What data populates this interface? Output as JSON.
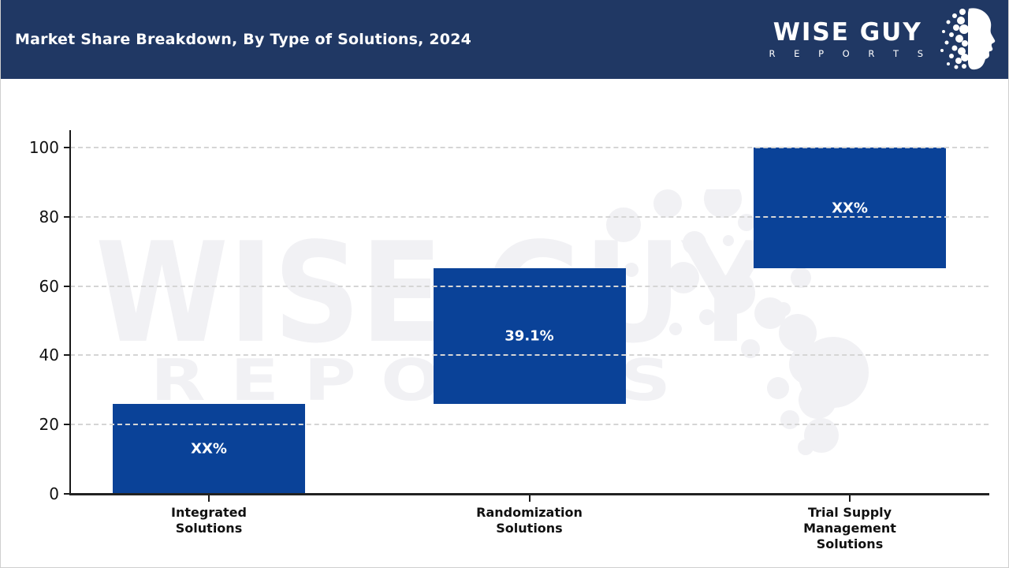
{
  "header": {
    "title": "Market Share Breakdown, By Type of Solutions, 2024",
    "bg_color": "#203864",
    "logo": {
      "name": "WISE GUY",
      "sub": "R E P O R T S"
    }
  },
  "watermark": {
    "line1": "WISE GUY",
    "line2": "R E P O R T S"
  },
  "chart_data": {
    "type": "bar",
    "subtype": "stacked-waterfall",
    "title": "Market Share Breakdown, By Type of Solutions, 2024",
    "categories": [
      [
        "Integrated",
        "Solutions"
      ],
      [
        "Randomization",
        "Solutions"
      ],
      [
        "Trial Supply",
        "Management",
        "Solutions"
      ]
    ],
    "bars": [
      {
        "label": "XX%",
        "base": 0,
        "top": 26,
        "value": 26
      },
      {
        "label": "39.1%",
        "base": 26,
        "top": 65.1,
        "value": 39.1
      },
      {
        "label": "XX%",
        "base": 65.1,
        "top": 100,
        "value": 34.9
      }
    ],
    "yticks": [
      0,
      20,
      40,
      60,
      80,
      100
    ],
    "ylim": [
      0,
      105
    ],
    "grid": "horizontal-dashed",
    "legend": "none",
    "bar_color": "#0a4298",
    "label_color": "#ffffff"
  }
}
